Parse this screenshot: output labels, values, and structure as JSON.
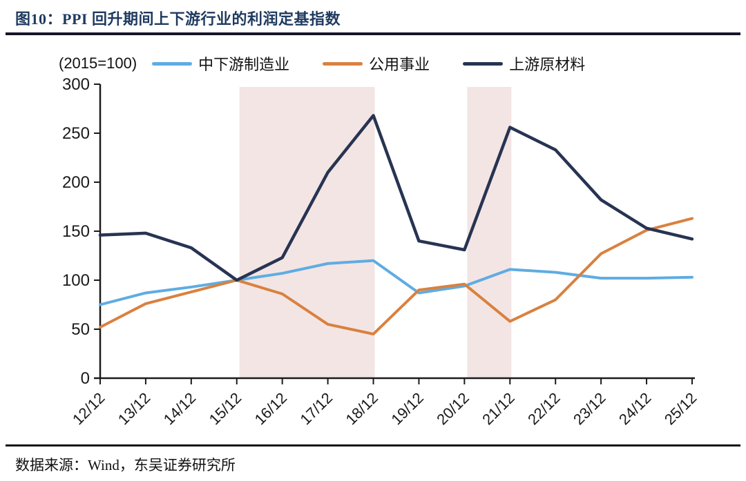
{
  "header": {
    "title": "图10：PPI 回升期间上下游行业的利润定基指数"
  },
  "footer": {
    "source": "数据来源：Wind，东吴证券研究所"
  },
  "chart_data": {
    "type": "line",
    "title": "PPI 回升期间上下游行业的利润定基指数",
    "unit_label": "(2015=100)",
    "xlabel": "",
    "ylabel": "",
    "ylim": [
      0,
      300
    ],
    "ytick_step": 50,
    "yticks": [
      0,
      50,
      100,
      150,
      200,
      250,
      300
    ],
    "grid": false,
    "legend_position": "top",
    "axis_color": "#1a1a1a",
    "shade_color": "#F3E5E4",
    "categories": [
      "12/12",
      "13/12",
      "14/12",
      "15/12",
      "16/12",
      "17/12",
      "18/12",
      "19/12",
      "20/12",
      "21/12",
      "22/12",
      "23/12",
      "24/12",
      "25/12"
    ],
    "series": [
      {
        "name": "中下游制造业",
        "color": "#5FACE2",
        "values": [
          75,
          87,
          93,
          100,
          107,
          117,
          120,
          87,
          94,
          111,
          108,
          102,
          102,
          103
        ]
      },
      {
        "name": "公用事业",
        "color": "#D9813F",
        "values": [
          52,
          76,
          88,
          100,
          86,
          55,
          45,
          90,
          96,
          58,
          80,
          127,
          151,
          163
        ]
      },
      {
        "name": "上游原材料",
        "color": "#273452",
        "values": [
          146,
          148,
          133,
          100,
          123,
          210,
          268,
          140,
          131,
          256,
          233,
          182,
          153,
          142
        ]
      }
    ],
    "shaded_regions": [
      {
        "from": "15/12",
        "to": "18/12"
      },
      {
        "from": "20/12",
        "to": "21/12"
      }
    ]
  }
}
